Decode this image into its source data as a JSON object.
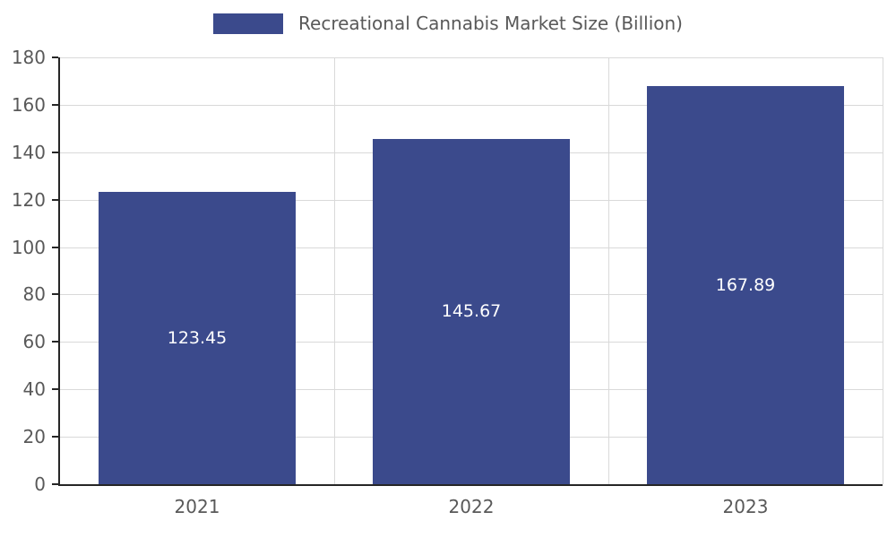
{
  "chart_data": {
    "type": "bar",
    "title": "Recreational Cannabis Market Size (Billion)",
    "categories": [
      "2021",
      "2022",
      "2023"
    ],
    "values": [
      123.45,
      145.67,
      167.89
    ],
    "value_labels": [
      "123.45",
      "145.67",
      "167.89"
    ],
    "ylim": [
      0,
      180
    ],
    "ytick_step": 20,
    "yticks": [
      0,
      20,
      40,
      60,
      80,
      100,
      120,
      140,
      160,
      180
    ],
    "grid": true,
    "legend_position": "top",
    "bar_width_fraction": 0.72,
    "colors": {
      "bar": "#3b4a8c",
      "grid": "#d9d9d9",
      "axis": "#262626",
      "tick_text": "#595959",
      "value_text": "#ffffff"
    }
  }
}
